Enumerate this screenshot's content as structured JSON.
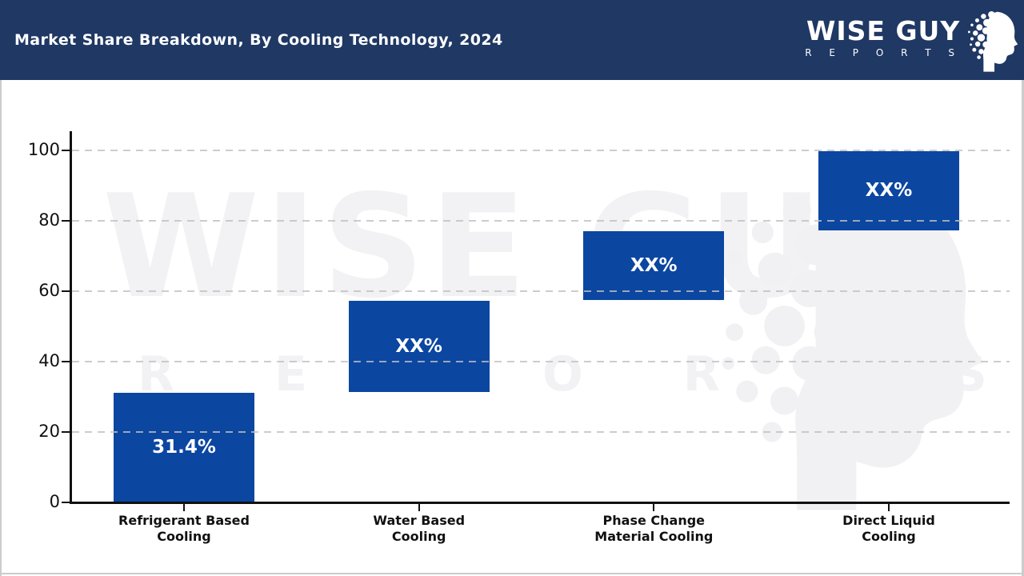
{
  "header": {
    "title": "Market Share Breakdown, By Cooling Technology, 2024",
    "logo": {
      "name": "WISE GUY",
      "sub": "R E P O R T S"
    }
  },
  "watermark": {
    "name": "WISE GUY",
    "sub": "R E P O R T S"
  },
  "chart_data": {
    "type": "bar",
    "subtype": "waterfall-floating-segments",
    "title": "Market Share Breakdown, By Cooling Technology, 2024",
    "categories": [
      [
        "Refrigerant Based",
        "Cooling"
      ],
      [
        "Water Based",
        "Cooling"
      ],
      [
        "Phase Change",
        "Material Cooling"
      ],
      [
        "Direct Liquid",
        "Cooling"
      ]
    ],
    "bars": [
      {
        "start": 0,
        "end": 31.4,
        "label": "31.4%"
      },
      {
        "start": 31.4,
        "end": 57.6,
        "label": "XX%"
      },
      {
        "start": 57.6,
        "end": 77.3,
        "label": "XX%"
      },
      {
        "start": 77.3,
        "end": 100,
        "label": "XX%"
      }
    ],
    "xlabel": "",
    "ylabel": "",
    "ylim": [
      0,
      105
    ],
    "yticks": [
      0,
      20,
      40,
      60,
      80,
      100
    ],
    "grid": "horizontal-dashed-over-bars",
    "legend": "none"
  },
  "colors": {
    "header_bg": "#1F3864",
    "bar": "#0B46A1",
    "bar_label": "#ffffff",
    "axis": "#111111",
    "grid": "#d4d4d4",
    "watermark": "#f2f2f4",
    "frame_border": "#cccccc"
  }
}
